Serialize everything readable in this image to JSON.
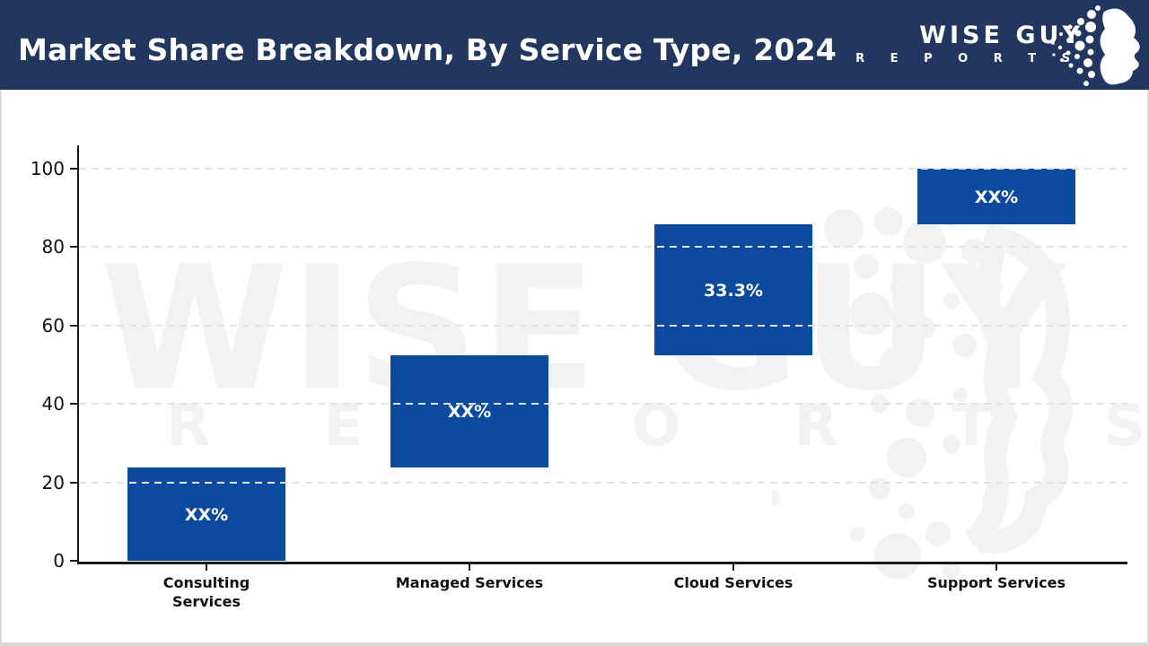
{
  "header": {
    "title": "Market Share Breakdown, By Service Type, 2024",
    "background": "#21375F",
    "logo": {
      "wordmark": "WISE GUY",
      "subline": "R E P O R T S",
      "face_icon": "dotted-head-profile"
    }
  },
  "watermark": {
    "wordmark": "WISE GUY",
    "subline": "R E P O R T S",
    "face_icon": "dotted-head-profile",
    "color": "#f2f2f5"
  },
  "chart_data": {
    "type": "bar",
    "subtype": "floating-waterfall",
    "title": "Market Share Breakdown, By Service Type, 2024",
    "categories": [
      "Consulting\nServices",
      "Managed Services",
      "Cloud Services",
      "Support Services"
    ],
    "segments": [
      {
        "category": "Consulting Services",
        "start": 0,
        "end": 23.8,
        "height": 23.8,
        "label": "XX%"
      },
      {
        "category": "Managed Services",
        "start": 23.8,
        "end": 52.4,
        "height": 28.6,
        "label": "XX%"
      },
      {
        "category": "Cloud Services",
        "start": 52.4,
        "end": 85.7,
        "height": 33.3,
        "label": "33.3%"
      },
      {
        "category": "Support Services",
        "start": 85.7,
        "end": 100,
        "height": 14.3,
        "label": "XX%"
      }
    ],
    "xlabel": "",
    "ylabel": "",
    "ylim": [
      0,
      100
    ],
    "yticks": [
      "0",
      "20",
      "40",
      "60",
      "80",
      "100"
    ],
    "ytick_values": [
      0,
      20,
      40,
      60,
      80,
      100
    ],
    "grid": true,
    "legend": "none",
    "bar_color": "#0B4A9E",
    "grid_color": "#e3e3e3",
    "value_label_color": "#ffffff"
  },
  "frame": {
    "border_color": "#d9d9d9"
  }
}
